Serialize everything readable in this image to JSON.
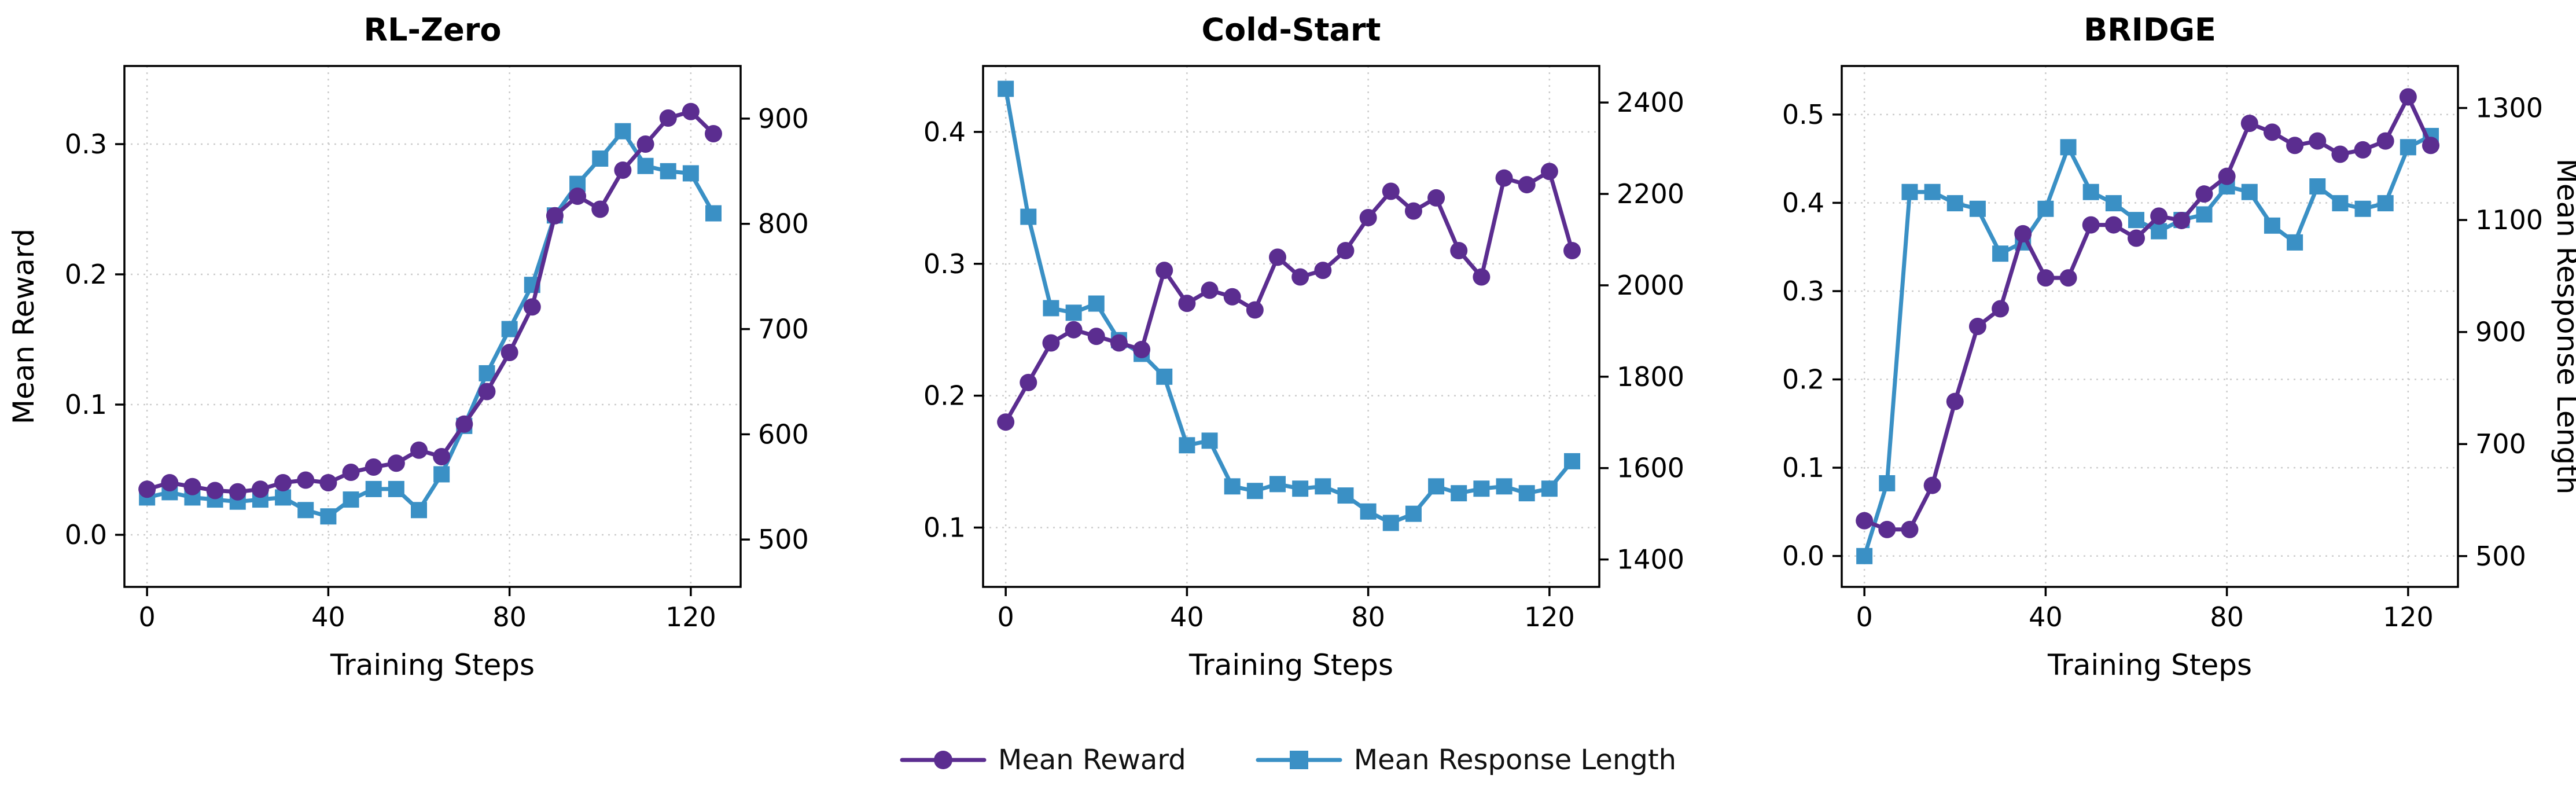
{
  "legend": [
    {
      "label": "Mean Reward",
      "color": "#5b2d90",
      "marker": "circle"
    },
    {
      "label": "Mean Response Length",
      "color": "#3a90c5",
      "marker": "square"
    }
  ],
  "chart_data": [
    {
      "type": "line",
      "title": "RL-Zero",
      "xlabel": "Training Steps",
      "left_axis_label": "Mean Reward",
      "right_axis_label": "",
      "x": [
        0,
        5,
        10,
        15,
        20,
        25,
        30,
        35,
        40,
        45,
        50,
        55,
        60,
        65,
        70,
        75,
        80,
        85,
        90,
        95,
        100,
        105,
        110,
        115,
        120,
        125
      ],
      "xlim": [
        -5,
        131
      ],
      "xticks": [
        0,
        40,
        80,
        120
      ],
      "left_ylim": [
        -0.04,
        0.36
      ],
      "left_ticks": [
        0.0,
        0.1,
        0.2,
        0.3
      ],
      "left_tick_labels": [
        "0.0",
        "0.1",
        "0.2",
        "0.3"
      ],
      "right_ylim": [
        455,
        950
      ],
      "right_ticks": [
        500,
        600,
        700,
        800,
        900
      ],
      "right_tick_labels": [
        "500",
        "600",
        "700",
        "800",
        "900"
      ],
      "series": [
        {
          "name": "Mean Reward",
          "axis": "left",
          "values": [
            0.035,
            0.04,
            0.037,
            0.034,
            0.033,
            0.035,
            0.04,
            0.042,
            0.04,
            0.048,
            0.052,
            0.055,
            0.065,
            0.06,
            0.085,
            0.11,
            0.14,
            0.175,
            0.245,
            0.26,
            0.25,
            0.28,
            0.3,
            0.32,
            0.325,
            0.308
          ]
        },
        {
          "name": "Mean Response Length",
          "axis": "right",
          "values": [
            540,
            545,
            540,
            538,
            536,
            538,
            540,
            528,
            522,
            538,
            548,
            548,
            528,
            562,
            608,
            658,
            700,
            742,
            808,
            838,
            862,
            888,
            855,
            850,
            848,
            810
          ]
        }
      ]
    },
    {
      "type": "line",
      "title": "Cold-Start",
      "xlabel": "Training Steps",
      "left_axis_label": "",
      "right_axis_label": "",
      "x": [
        0,
        5,
        10,
        15,
        20,
        25,
        30,
        35,
        40,
        45,
        50,
        55,
        60,
        65,
        70,
        75,
        80,
        85,
        90,
        95,
        100,
        105,
        110,
        115,
        120,
        125
      ],
      "xlim": [
        -5,
        131
      ],
      "xticks": [
        0,
        40,
        80,
        120
      ],
      "left_ylim": [
        0.055,
        0.45
      ],
      "left_ticks": [
        0.1,
        0.2,
        0.3,
        0.4
      ],
      "left_tick_labels": [
        "0.1",
        "0.2",
        "0.3",
        "0.4"
      ],
      "right_ylim": [
        1340,
        2480
      ],
      "right_ticks": [
        1400,
        1600,
        1800,
        2000,
        2200,
        2400
      ],
      "right_tick_labels": [
        "1400",
        "1600",
        "1800",
        "2000",
        "2200",
        "2400"
      ],
      "series": [
        {
          "name": "Mean Reward",
          "axis": "left",
          "values": [
            0.18,
            0.21,
            0.24,
            0.25,
            0.245,
            0.24,
            0.235,
            0.295,
            0.27,
            0.28,
            0.275,
            0.265,
            0.305,
            0.29,
            0.295,
            0.31,
            0.335,
            0.355,
            0.34,
            0.35,
            0.31,
            0.29,
            0.365,
            0.36,
            0.37,
            0.31
          ]
        },
        {
          "name": "Mean Response Length",
          "axis": "right",
          "values": [
            2430,
            2150,
            1950,
            1940,
            1960,
            1880,
            1850,
            1800,
            1650,
            1660,
            1560,
            1550,
            1565,
            1555,
            1560,
            1540,
            1505,
            1480,
            1500,
            1560,
            1545,
            1555,
            1560,
            1545,
            1555,
            1615
          ]
        }
      ]
    },
    {
      "type": "line",
      "title": "BRIDGE",
      "xlabel": "Training Steps",
      "left_axis_label": "",
      "right_axis_label": "Mean Response Length",
      "x": [
        0,
        5,
        10,
        15,
        20,
        25,
        30,
        35,
        40,
        45,
        50,
        55,
        60,
        65,
        70,
        75,
        80,
        85,
        90,
        95,
        100,
        105,
        110,
        115,
        120,
        125
      ],
      "xlim": [
        -5,
        131
      ],
      "xticks": [
        0,
        40,
        80,
        120
      ],
      "left_ylim": [
        -0.035,
        0.555
      ],
      "left_ticks": [
        0.0,
        0.1,
        0.2,
        0.3,
        0.4,
        0.5
      ],
      "left_tick_labels": [
        "0.0",
        "0.1",
        "0.2",
        "0.3",
        "0.4",
        "0.5"
      ],
      "right_ylim": [
        445,
        1375
      ],
      "right_ticks": [
        500,
        700,
        900,
        1100,
        1300
      ],
      "right_tick_labels": [
        "500",
        "700",
        "900",
        "1100",
        "1300"
      ],
      "series": [
        {
          "name": "Mean Reward",
          "axis": "left",
          "values": [
            0.04,
            0.03,
            0.03,
            0.08,
            0.175,
            0.26,
            0.28,
            0.365,
            0.315,
            0.315,
            0.375,
            0.375,
            0.36,
            0.385,
            0.38,
            0.41,
            0.43,
            0.49,
            0.48,
            0.465,
            0.47,
            0.455,
            0.46,
            0.47,
            0.52,
            0.465
          ]
        },
        {
          "name": "Mean Response Length",
          "axis": "right",
          "values": [
            500,
            630,
            1150,
            1150,
            1130,
            1120,
            1040,
            1060,
            1120,
            1230,
            1150,
            1130,
            1100,
            1080,
            1100,
            1110,
            1160,
            1150,
            1090,
            1060,
            1160,
            1130,
            1120,
            1130,
            1230,
            1250
          ]
        }
      ]
    }
  ],
  "layout_hints": {
    "grid": "dotted",
    "legend_position": "bottom-center"
  }
}
